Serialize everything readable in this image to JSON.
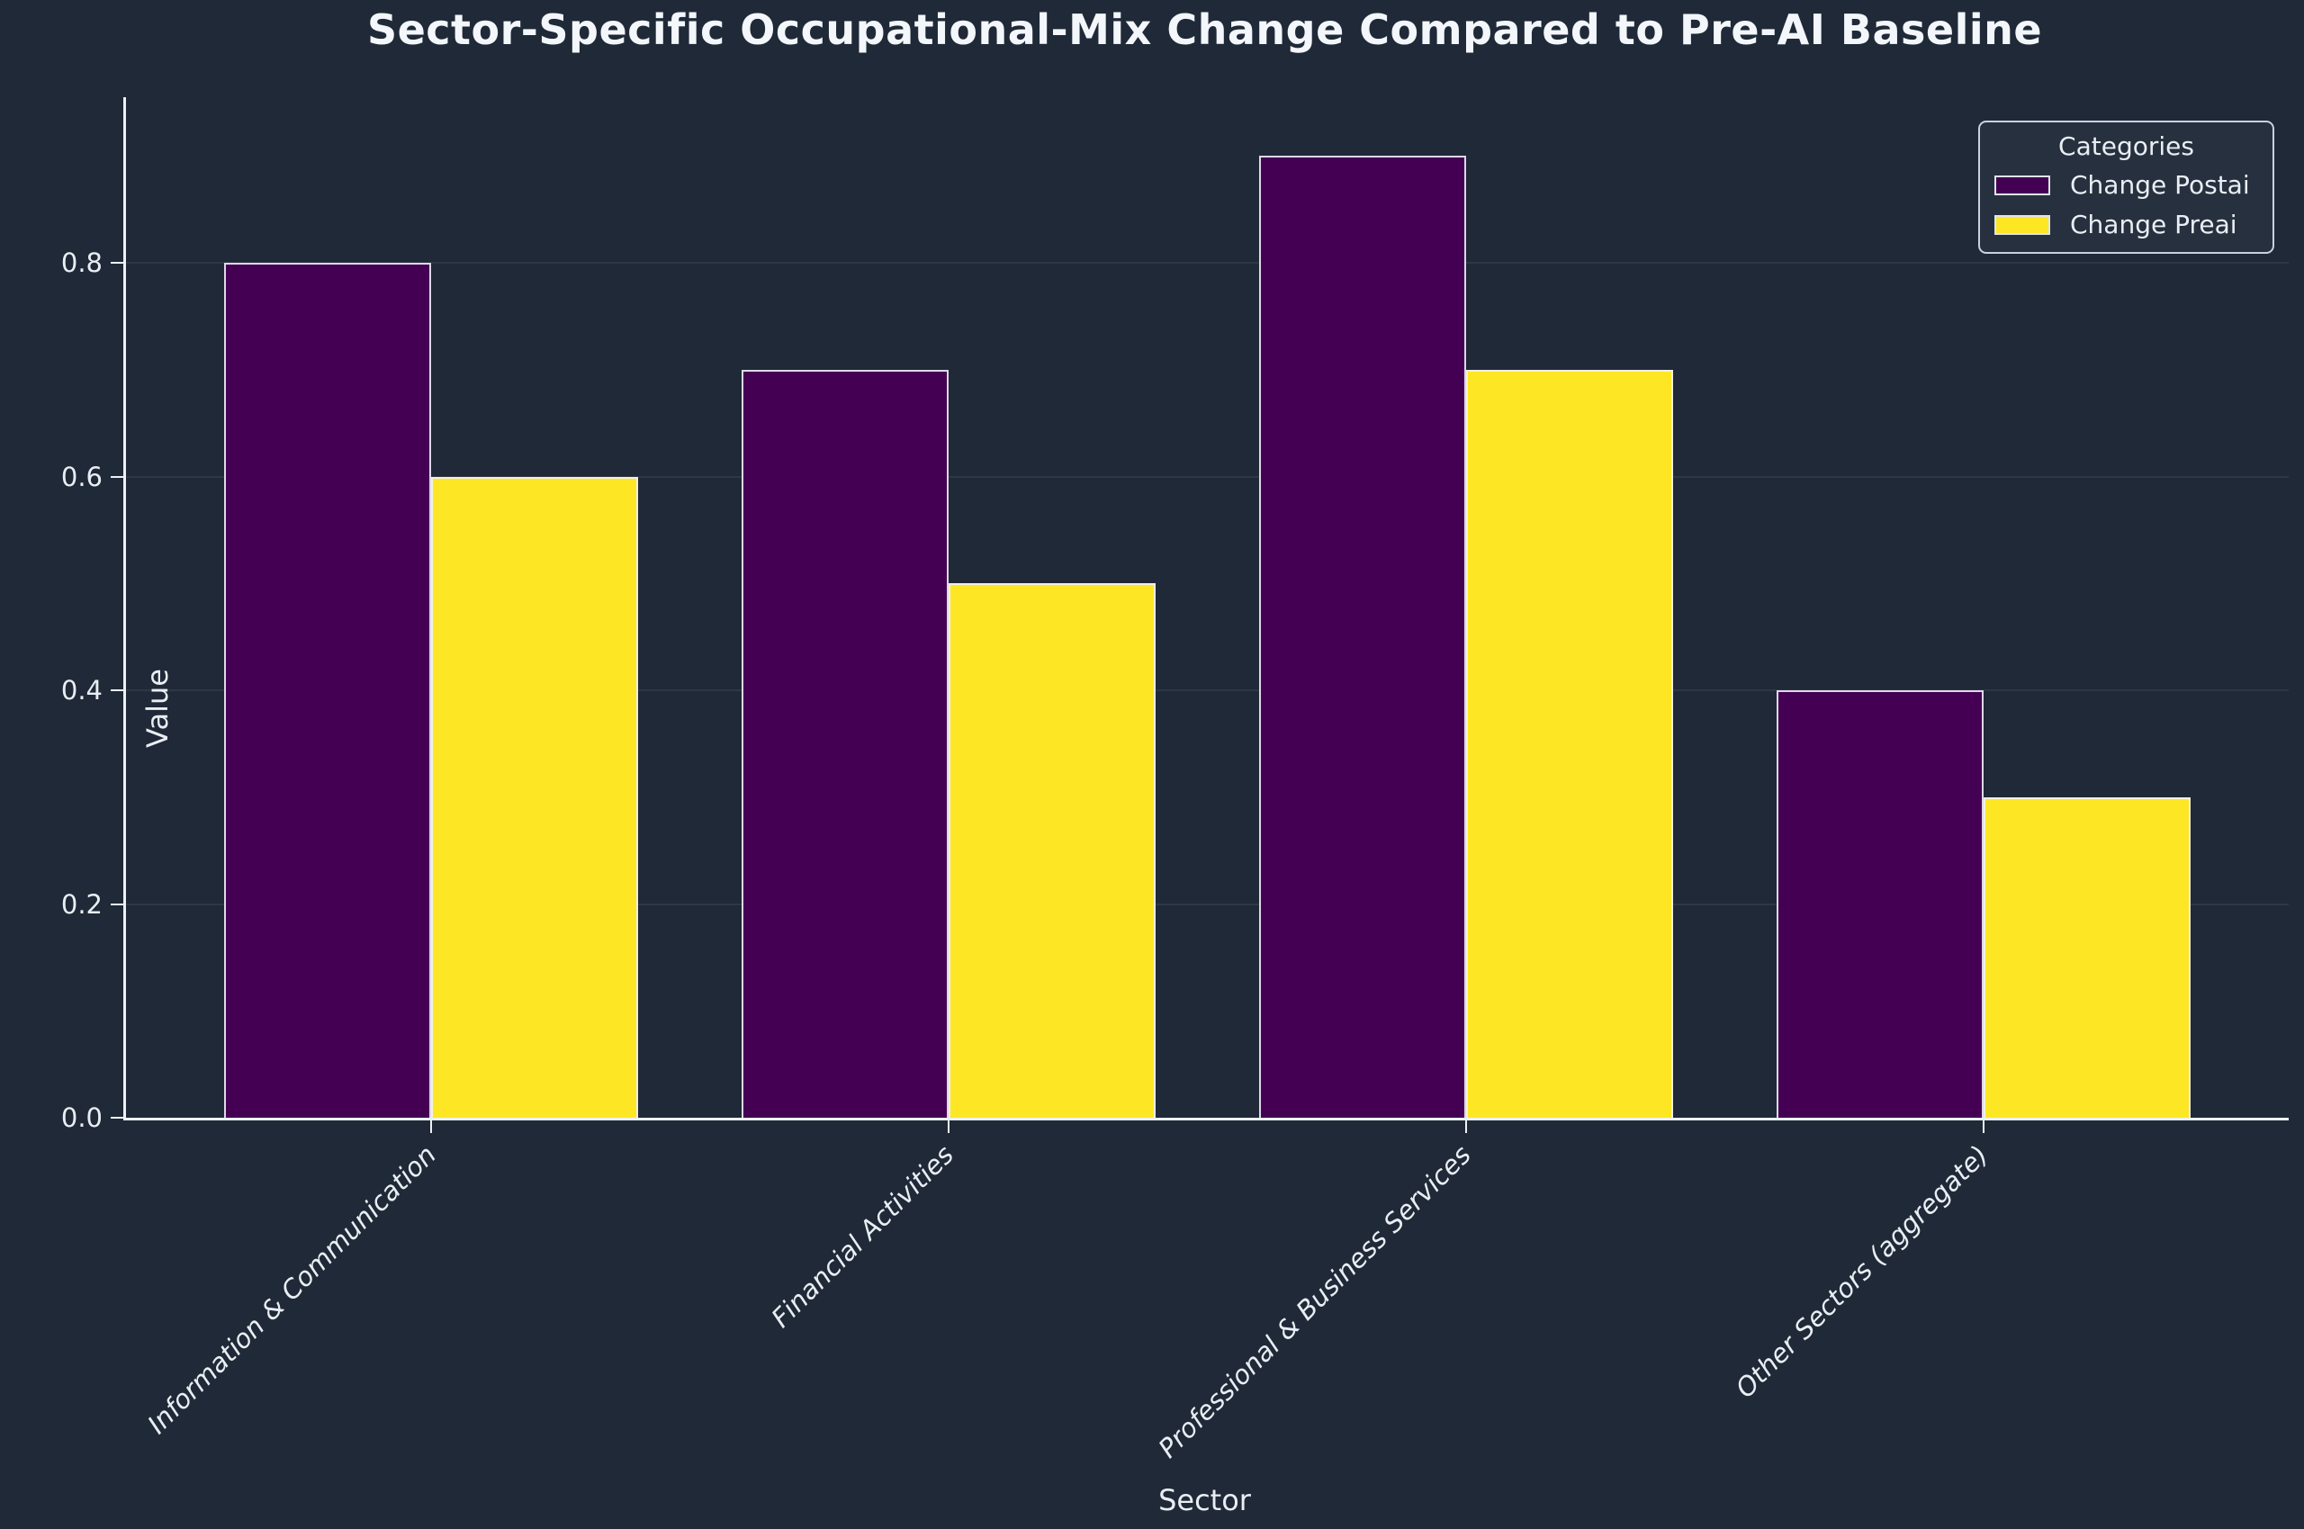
{
  "page": {
    "background_color": "#1f2937",
    "text_color": "#e9eef4",
    "axis_color": "#edf1f6",
    "grid_color": "rgba(255,255,255,0.07)"
  },
  "chart_data": {
    "type": "bar",
    "title": "Sector-Specific Occupational-Mix Change Compared to Pre-AI Baseline",
    "xlabel": "Sector",
    "ylabel": "Value",
    "categories": [
      "Information & Communication",
      "Financial Activities",
      "Professional & Business Services",
      "Other Sectors (aggregate)"
    ],
    "series": [
      {
        "name": "Change Postai",
        "color": "#440154",
        "values": [
          0.8,
          0.7,
          0.9,
          0.4
        ]
      },
      {
        "name": "Change Preai",
        "color": "#fde725",
        "values": [
          0.6,
          0.5,
          0.7,
          0.3
        ]
      }
    ],
    "legend_title": "Categories",
    "legend_position": "upper right",
    "y_ticks": [
      0.0,
      0.2,
      0.4,
      0.6,
      0.8
    ],
    "y_tick_labels": [
      "0.0",
      "0.2",
      "0.4",
      "0.6",
      "0.8"
    ],
    "ylim": [
      0,
      0.955
    ],
    "xlim": [
      -0.59,
      3.59
    ],
    "bar_width": 0.4,
    "grid": "horizontal-faint",
    "bar_edge_color": "rgba(240,240,248,0.9)",
    "x_tick_label_style": "italic, rotated 45deg"
  }
}
